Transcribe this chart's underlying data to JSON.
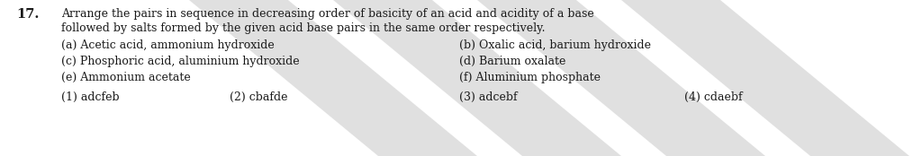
{
  "background_color": "#ffffff",
  "text_color": "#1a1a1a",
  "figsize": [
    10.24,
    1.74
  ],
  "dpi": 100,
  "question_number": "17.",
  "line1": "Arrange the pairs in sequence in decreasing order of basicity of an acid and acidity of a base",
  "line2": "followed by salts formed by the given acid base pairs in the same order respectively.",
  "col1_row1": "(a) Acetic acid, ammonium hydroxide",
  "col2_row1": "(b) Oxalic acid, barium hydroxide",
  "col1_row2": "(c) Phosphoric acid, aluminium hydroxide",
  "col2_row2": "(d) Barium oxalate",
  "col1_row3": "(e) Ammonium acetate",
  "col2_row3": "(f) Aluminium phosphate",
  "opt1": "(1) adcfeb",
  "opt2": "(2) cbafde",
  "opt3": "(3) adcebf",
  "opt4": "(4) cdaebf",
  "font_size": 9.0,
  "font_size_number": 10.5,
  "watermark_color": "#c8c8c8",
  "watermark_alpha": 0.55
}
